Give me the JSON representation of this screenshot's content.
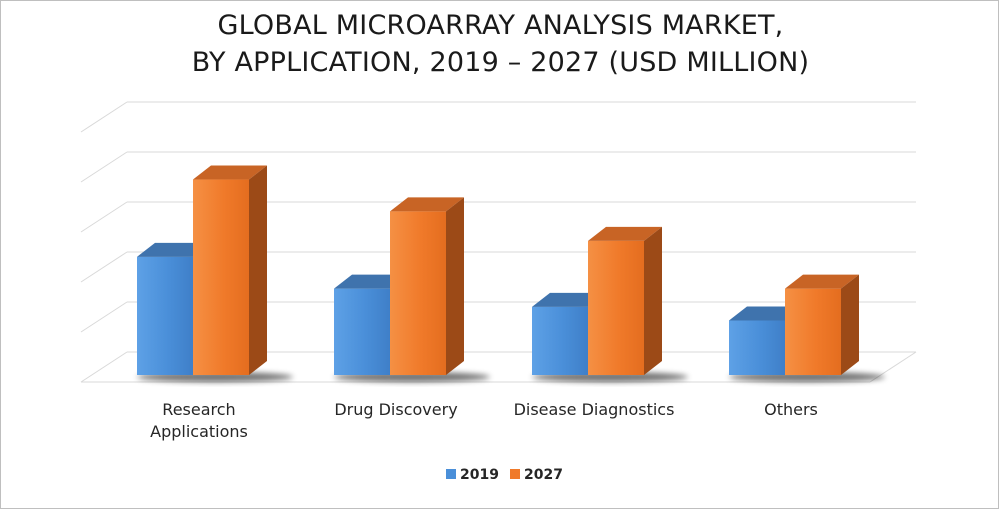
{
  "chart_data": {
    "type": "bar",
    "title_lines": [
      "GLOBAL MICROARRAY ANALYSIS MARKET,",
      "BY APPLICATION, 2019 – 2027 (USD MILLION)"
    ],
    "categories": [
      [
        "Research",
        "Applications"
      ],
      [
        "Drug Discovery"
      ],
      [
        "Disease Diagnostics"
      ],
      [
        "Others"
      ]
    ],
    "series": [
      {
        "name": "2019",
        "values": [
          2.6,
          1.9,
          1.5,
          1.2
        ],
        "color": "#4a8fd9",
        "top_color": "#3f73ad",
        "side_color": "#2e5f95"
      },
      {
        "name": "2027",
        "values": [
          4.3,
          3.6,
          2.95,
          1.9
        ],
        "color": "#f07a2a",
        "top_color": "#c86425",
        "side_color": "#9c4a17"
      }
    ],
    "ylim": [
      0,
      5.5
    ],
    "gridlines": 6,
    "grid": true,
    "three_d": true,
    "legend_position": "bottom",
    "xlabel": "",
    "ylabel": ""
  }
}
